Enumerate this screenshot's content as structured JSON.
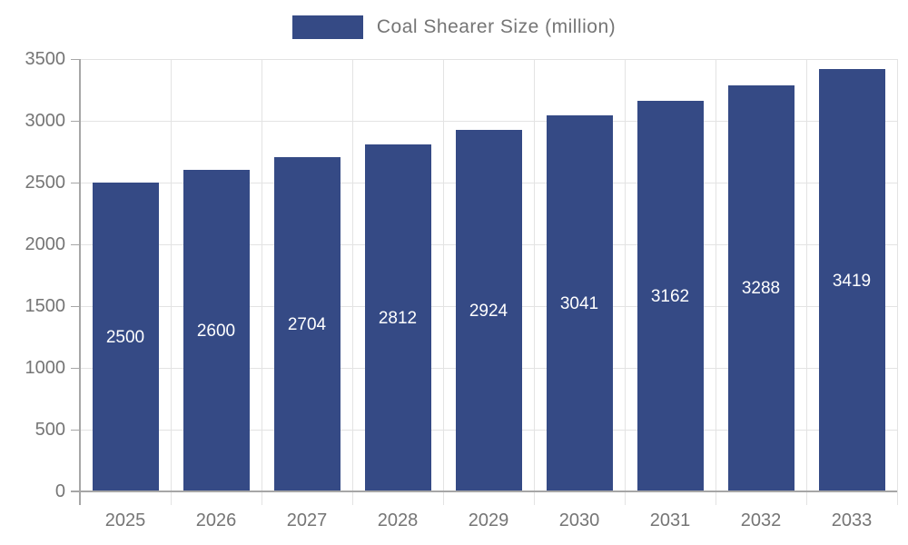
{
  "legend": {
    "label": "Coal Shearer Size (million)"
  },
  "chart_data": {
    "type": "bar",
    "title": "Coal Shearer Size (million)",
    "categories": [
      "2025",
      "2026",
      "2027",
      "2028",
      "2029",
      "2030",
      "2031",
      "2032",
      "2033"
    ],
    "values": [
      2500,
      2600,
      2704,
      2812,
      2924,
      3041,
      3162,
      3288,
      3419
    ],
    "xlabel": "",
    "ylabel": "",
    "ylim": [
      0,
      3500
    ],
    "ytick_step": 500,
    "ytick_labels": [
      "0",
      "500",
      "1000",
      "1500",
      "2000",
      "2500",
      "3000",
      "3500"
    ],
    "grid": true,
    "legend_position": "top",
    "bar_color": "#354a85",
    "bar_value_label_color": "#ffffff",
    "axis_text_color": "#757575",
    "grid_color": "#e3e3e3",
    "axis_line_color": "#a6a6a6"
  }
}
